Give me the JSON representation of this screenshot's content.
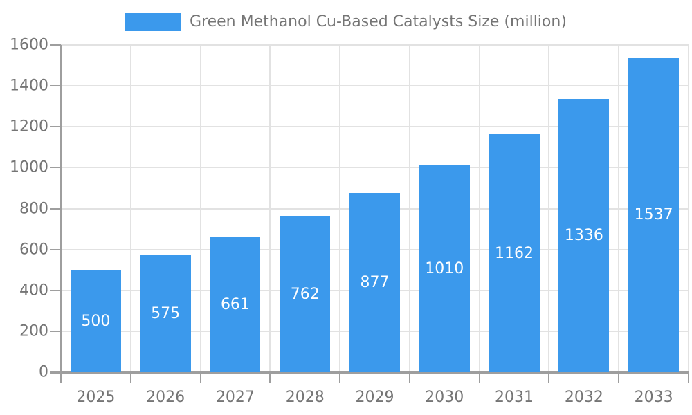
{
  "legend": {
    "label": "Green Methanol Cu-Based Catalysts Size (million)"
  },
  "chart_data": {
    "type": "bar",
    "title": "Green Methanol Cu-Based Catalysts Size (million)",
    "categories": [
      "2025",
      "2026",
      "2027",
      "2028",
      "2029",
      "2030",
      "2031",
      "2032",
      "2033"
    ],
    "values": [
      500,
      575,
      661,
      762,
      877,
      1010,
      1162,
      1336,
      1537
    ],
    "xlabel": "",
    "ylabel": "",
    "ylim": [
      0,
      1600
    ],
    "yticks": [
      0,
      200,
      400,
      600,
      800,
      1000,
      1200,
      1400,
      1600
    ],
    "grid": true,
    "legend_position": "top-center",
    "value_label_position": "inside-middle",
    "colors": {
      "bar": "#3B99EC",
      "grid": "#E2E2E2",
      "axis": "#9E9E9E",
      "tick_label": "#757575",
      "value_label": "#FFFFFF",
      "background": "#FFFFFF"
    }
  }
}
